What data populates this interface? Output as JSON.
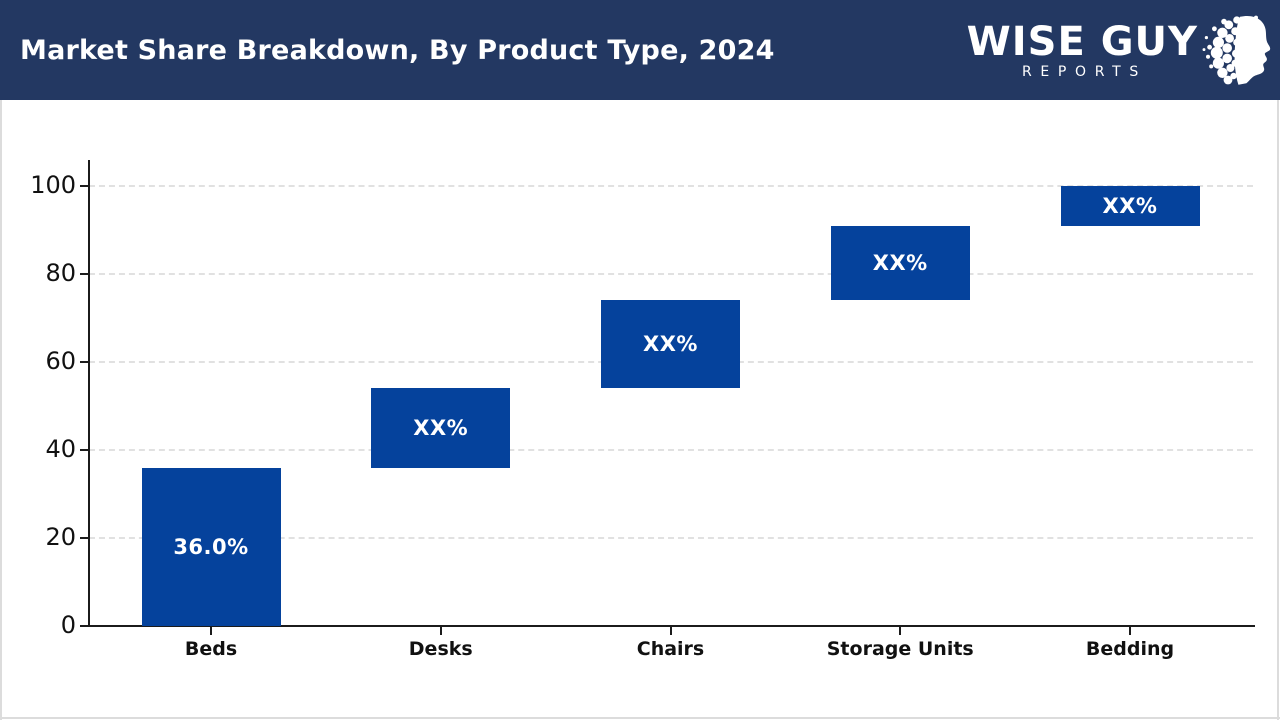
{
  "header": {
    "title": "Market Share Breakdown, By Product Type, 2024",
    "logo": {
      "line1": "WISE GUY",
      "line2": "REPORTS"
    }
  },
  "watermark": {
    "line1": "WISE GUY",
    "line2": "REPORTS"
  },
  "colors": {
    "header_bg": "#233862",
    "bar": "#05429c",
    "bar_label_text": "#ffffff",
    "axis": "#1b1b1b",
    "gridline": "#e1e1e1",
    "watermark": "#f1f1f1",
    "card_border": "#dcdcdc"
  },
  "chart_data": {
    "type": "bar",
    "subtype": "waterfall",
    "title": "Market Share Breakdown, By Product Type, 2024",
    "categories": [
      "Beds",
      "Desks",
      "Chairs",
      "Storage Units",
      "Bedding"
    ],
    "segments": [
      {
        "category": "Beds",
        "start": 0,
        "end": 36,
        "increment": 36,
        "label": "36.0%"
      },
      {
        "category": "Desks",
        "start": 36,
        "end": 54,
        "increment": 18,
        "label": "XX%"
      },
      {
        "category": "Chairs",
        "start": 54,
        "end": 74,
        "increment": 20,
        "label": "XX%"
      },
      {
        "category": "Storage Units",
        "start": 74,
        "end": 91,
        "increment": 17,
        "label": "XX%"
      },
      {
        "category": "Bedding",
        "start": 91,
        "end": 100,
        "increment": 9,
        "label": "XX%"
      }
    ],
    "xlabel": "",
    "ylabel": "",
    "ylim": [
      0,
      100
    ],
    "yticks": [
      0,
      20,
      40,
      60,
      80,
      100
    ],
    "grid": "horizontal-dashed",
    "legend": "none"
  }
}
